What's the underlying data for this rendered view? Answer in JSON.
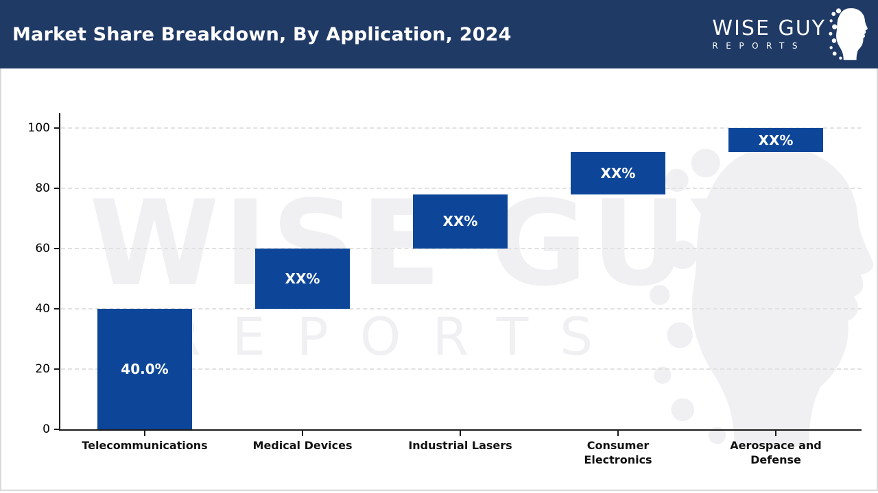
{
  "header": {
    "title": "Market Share Breakdown, By Application, 2024",
    "bg_color": "#203a66",
    "logo": {
      "line1": "WISE GUY",
      "line2": "REPORTS"
    }
  },
  "watermark": {
    "line1": "WISE GUY",
    "line2": "REPORTS"
  },
  "icons": {
    "logo_face": "face-profile-dots-icon"
  },
  "chart_data": {
    "type": "bar",
    "subtype": "waterfall",
    "title": "Market Share Breakdown, By Application, 2024",
    "xlabel": "",
    "ylabel": "",
    "categories": [
      "Telecommunications",
      "Medical Devices",
      "Industrial Lasers",
      "Consumer Electronics",
      "Aerospace and Defense"
    ],
    "segments": [
      {
        "category": "Telecommunications",
        "category_lines": [
          "Telecommunications"
        ],
        "start": 0,
        "end": 40,
        "label": "40.0%"
      },
      {
        "category": "Medical Devices",
        "category_lines": [
          "Medical Devices"
        ],
        "start": 40,
        "end": 60,
        "label": "XX%"
      },
      {
        "category": "Industrial Lasers",
        "category_lines": [
          "Industrial Lasers"
        ],
        "start": 60,
        "end": 78,
        "label": "XX%"
      },
      {
        "category": "Consumer Electronics",
        "category_lines": [
          "Consumer",
          "Electronics"
        ],
        "start": 78,
        "end": 92,
        "label": "XX%"
      },
      {
        "category": "Aerospace and Defense",
        "category_lines": [
          "Aerospace and",
          "Defense"
        ],
        "start": 92,
        "end": 100,
        "label": "XX%"
      }
    ],
    "yticks": [
      0,
      20,
      40,
      60,
      80,
      100
    ],
    "ylim": [
      0,
      105
    ],
    "grid": "horizontal-dashed",
    "legend": "none",
    "bar_color": "#0d4699",
    "bar_label_color": "#ffffff",
    "axis_color": "#1a1a1a",
    "grid_color": "#e1e1e1"
  }
}
